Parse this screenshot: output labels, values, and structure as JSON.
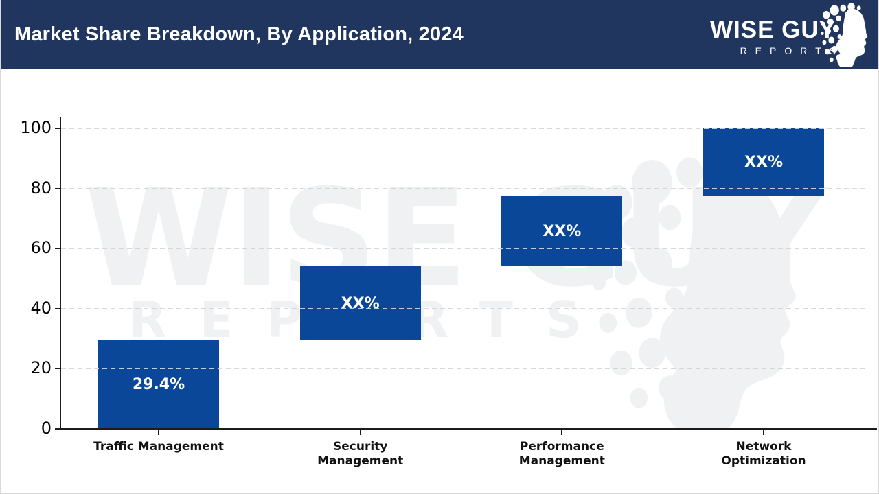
{
  "header": {
    "title": "Market Share Breakdown, By Application, 2024",
    "bg_color": "#21365f",
    "brand": {
      "name": "WISE GUY",
      "sub": "REPORTS"
    }
  },
  "watermark": {
    "line1": "WISE GUY",
    "line2": "REPORTS"
  },
  "chart_data": {
    "type": "bar",
    "variant": "floating-waterfall",
    "title": "Market Share Breakdown, By Application, 2024",
    "categories": [
      "Traffic Management",
      "Security\nManagement",
      "Performance\nManagement",
      "Network\nOptimization"
    ],
    "segments": [
      {
        "category": "Traffic Management",
        "start": 0,
        "end": 29.4,
        "label": "29.4%"
      },
      {
        "category": "Security Management",
        "start": 29.4,
        "end": 54,
        "label": "XX%"
      },
      {
        "category": "Performance Management",
        "start": 54,
        "end": 77.3,
        "label": "XX%"
      },
      {
        "category": "Network Optimization",
        "start": 77.3,
        "end": 100,
        "label": "XX%"
      }
    ],
    "ylim": [
      0,
      100
    ],
    "yticks": [
      0,
      20,
      40,
      60,
      80,
      100
    ],
    "grid": "dashed-horizontal-over-bars",
    "legend": "none",
    "bar_color": "#0b4798",
    "value_label_color": "#ffffff",
    "axis_color": "#1c1c1c",
    "grid_color": "#d4d4d6"
  }
}
